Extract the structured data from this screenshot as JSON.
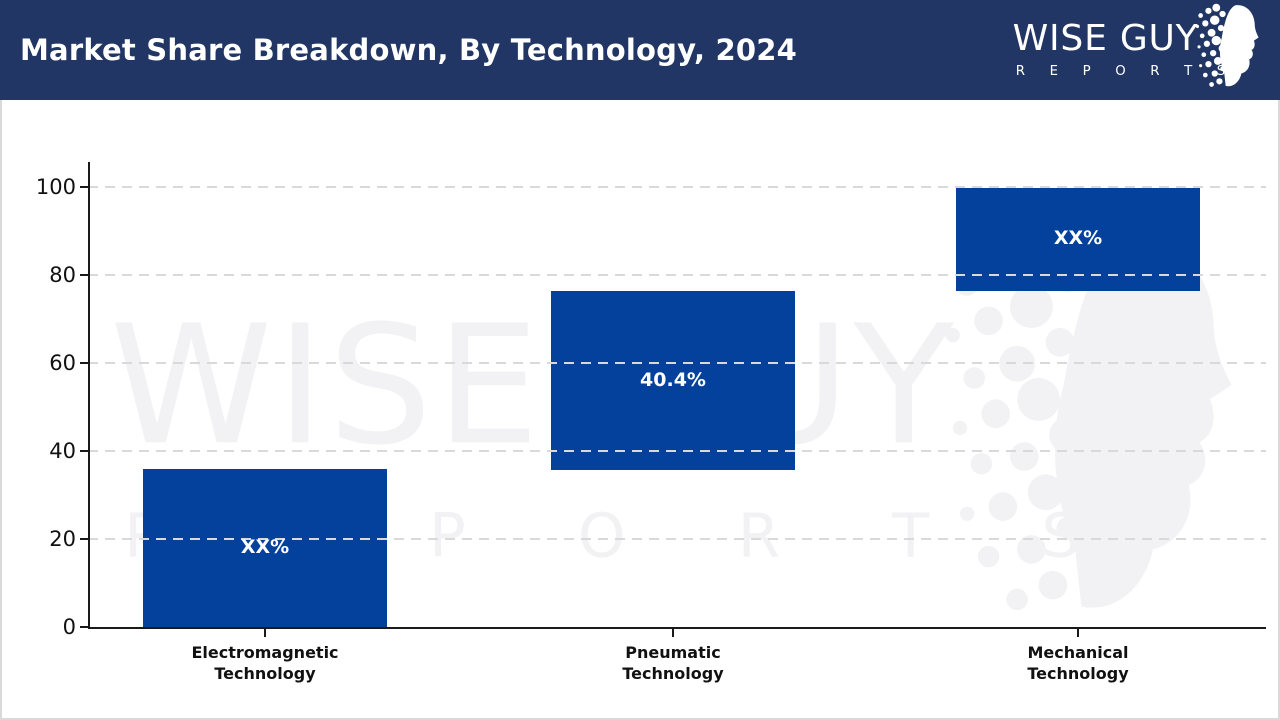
{
  "header": {
    "title": "Market Share Breakdown, By Technology, 2024",
    "logo": {
      "name": "WISE GUY",
      "sub": "R E P O R T S",
      "icon": "face-profile-dots-icon"
    }
  },
  "watermark": {
    "text": "WISE GUY",
    "sub": "R E P O R T S",
    "icon": "face-profile-dots-icon"
  },
  "chart_data": {
    "type": "bar",
    "subtype": "floating-waterfall",
    "title": "Market Share Breakdown, By Technology, 2024",
    "categories": [
      "Electromagnetic\nTechnology",
      "Pneumatic\nTechnology",
      "Mechanical\nTechnology"
    ],
    "bars": [
      {
        "category": "Electromagnetic Technology",
        "from": 0,
        "to": 35.8,
        "label": "XX%"
      },
      {
        "category": "Pneumatic Technology",
        "from": 35.7,
        "to": 76.2,
        "label": "40.4%"
      },
      {
        "category": "Mechanical Technology",
        "from": 76.3,
        "to": 99.7,
        "label": "XX%"
      }
    ],
    "xlabel": "",
    "ylabel": "",
    "yticks": [
      0,
      20,
      40,
      60,
      80,
      100
    ],
    "ylim": [
      0,
      105
    ],
    "grid": "horizontal-dashed-above-bars",
    "legend": "none",
    "colors": {
      "bar": "#04419d",
      "header_background": "#213664",
      "grid": "#d9d9d9",
      "axis": "#1a1a1a",
      "bar_label_text": "#ffffff",
      "watermark": "#f2f2f4"
    }
  }
}
